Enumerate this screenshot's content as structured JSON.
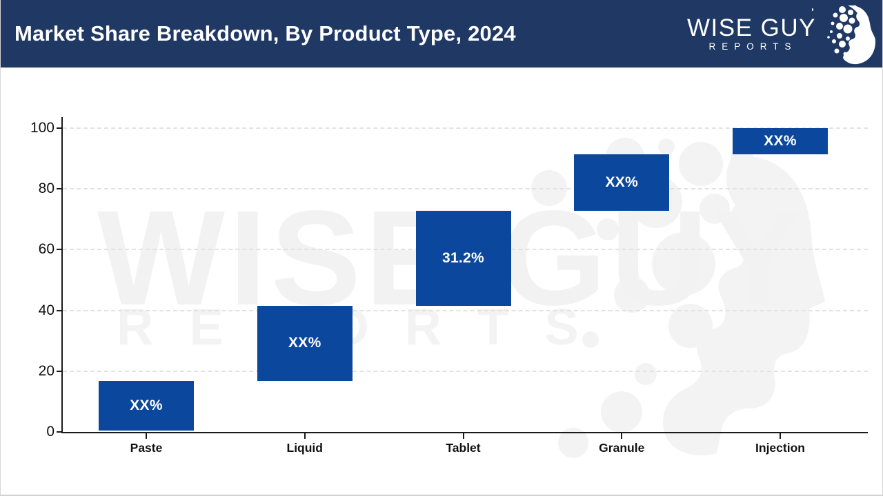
{
  "header": {
    "title": "Market Share Breakdown, By Product Type, 2024",
    "bg_color": "#203864",
    "logo": {
      "wordmark": "WISE GUY",
      "subtitle": "REPORTS"
    }
  },
  "watermark": {
    "line1": "WISE GUY",
    "line2": "REPORTS"
  },
  "icons": {
    "logo_head": "wiseguy-head-dots"
  },
  "chart_data": {
    "type": "bar",
    "variant": "waterfall-floating-bars",
    "title": "Market Share Breakdown, By Product Type, 2024",
    "categories": [
      "Paste",
      "Liquid",
      "Tablet",
      "Granule",
      "Injection"
    ],
    "series": [
      {
        "name": "Market share (%)",
        "segments": [
          {
            "category": "Paste",
            "start": 0,
            "end": 16.7,
            "label": "XX%"
          },
          {
            "category": "Liquid",
            "start": 16.7,
            "end": 41.6,
            "label": "XX%"
          },
          {
            "category": "Tablet",
            "start": 41.6,
            "end": 72.8,
            "label": "31.2%"
          },
          {
            "category": "Granule",
            "start": 72.8,
            "end": 91.4,
            "label": "XX%"
          },
          {
            "category": "Injection",
            "start": 91.4,
            "end": 100,
            "label": "XX%"
          }
        ]
      }
    ],
    "xlabel": "",
    "ylabel": "",
    "ylim": [
      0,
      100
    ],
    "yticks": [
      0,
      20,
      40,
      60,
      80,
      100
    ],
    "grid": "horizontal-dashed",
    "legend": "none",
    "bar_color": "#0b479d",
    "bar_label_color": "#ffffff",
    "axis_color": "#1a1a1a",
    "gridline_color": "#e2e2e2"
  }
}
